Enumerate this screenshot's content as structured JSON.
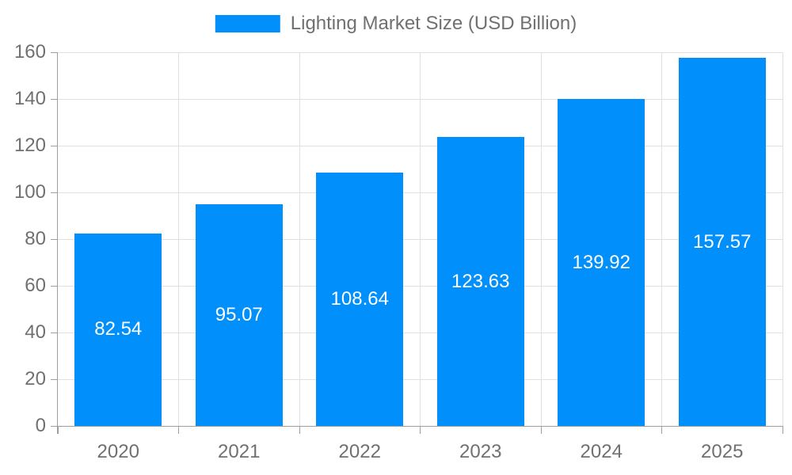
{
  "chart_data": {
    "type": "bar",
    "title": "Lighting Market Size (USD Billion)",
    "legend": {
      "label": "Lighting Market Size (USD Billion)",
      "position": "top"
    },
    "categories": [
      "2020",
      "2021",
      "2022",
      "2023",
      "2024",
      "2025"
    ],
    "values": [
      82.54,
      95.07,
      108.64,
      123.63,
      139.92,
      157.57
    ],
    "value_labels": [
      "82.54",
      "95.07",
      "108.64",
      "123.63",
      "139.92",
      "157.57"
    ],
    "xlabel": "",
    "ylabel": "",
    "ylim": [
      0,
      160
    ],
    "yticks": [
      0,
      20,
      40,
      60,
      80,
      100,
      120,
      140,
      160
    ],
    "grid": true,
    "colors": {
      "bar": "#008FFB",
      "bar_value_text": "#FFFFFF",
      "axis_text": "#707070",
      "axis_line": "#9E9E9E",
      "gridline": "#E0E0E0",
      "background": "#FFFFFF"
    }
  }
}
